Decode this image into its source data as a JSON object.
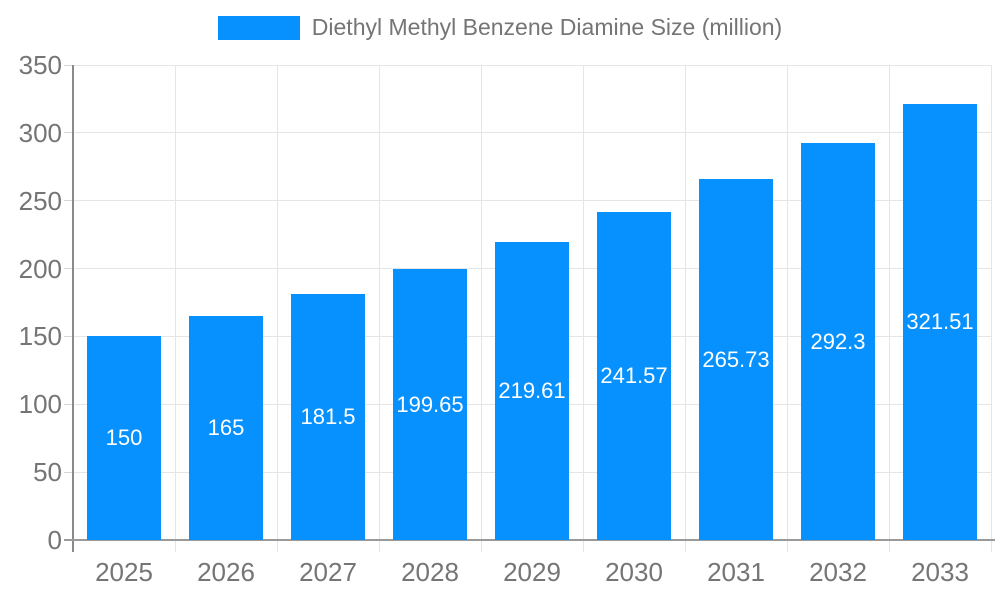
{
  "chart_data": {
    "type": "bar",
    "title": "Diethyl Methyl Benzene Diamine Size (million)",
    "categories": [
      "2025",
      "2026",
      "2027",
      "2028",
      "2029",
      "2030",
      "2031",
      "2032",
      "2033"
    ],
    "values": [
      150,
      165,
      181.5,
      199.65,
      219.61,
      241.57,
      265.73,
      292.3,
      321.51
    ],
    "value_labels": [
      "150",
      "165",
      "181.5",
      "199.65",
      "219.61",
      "241.57",
      "265.73",
      "292.3",
      "321.51"
    ],
    "xlabel": "",
    "ylabel": "",
    "ylim": [
      0,
      350
    ],
    "ytick_step": 50,
    "ytick_labels": [
      "0",
      "50",
      "100",
      "150",
      "200",
      "250",
      "300",
      "350"
    ],
    "grid": "horizontal and vertical gridlines on",
    "legend_position": "top-center",
    "colors": {
      "bar": "#0691ff",
      "bar_label_text": "#ffffff",
      "gridline": "#e5e5e5",
      "axis_line": "#8a8a8a",
      "tick_mark": "#d6d6d6",
      "axis_label_text": "#757575",
      "legend_text": "#757575",
      "background": "#ffffff"
    }
  }
}
